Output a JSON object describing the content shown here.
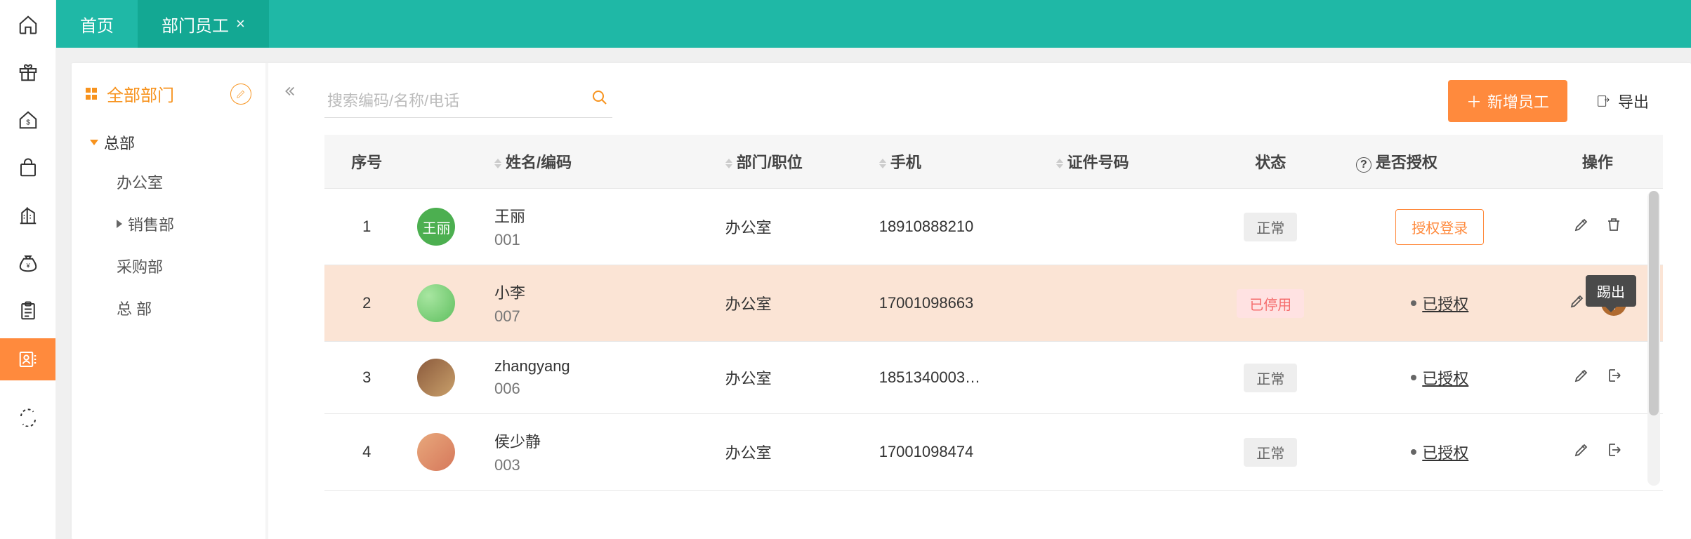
{
  "tabs": {
    "home": "首页",
    "dept": "部门员工"
  },
  "tree": {
    "title": "全部部门",
    "root": "总部",
    "children": [
      "办公室",
      "销售部",
      "采购部",
      "总 部"
    ]
  },
  "search": {
    "placeholder": "搜索编码/名称/电话"
  },
  "buttons": {
    "add": "新增员工",
    "export": "导出"
  },
  "columns": {
    "idx": "序号",
    "name": "姓名/编码",
    "dept": "部门/职位",
    "phone": "手机",
    "idno": "证件号码",
    "status": "状态",
    "auth": "是否授权",
    "ops": "操作"
  },
  "status_labels": {
    "normal": "正常",
    "stopped": "已停用"
  },
  "auth_labels": {
    "authorized": "已授权",
    "authorize_login": "授权登录"
  },
  "tooltip": "踢出",
  "rows": [
    {
      "idx": "1",
      "avatar_text": "王丽",
      "avatar_class": "text",
      "name": "王丽",
      "code": "001",
      "dept": "办公室",
      "phone": "18910888210",
      "idno": "",
      "status": "normal",
      "auth": "button"
    },
    {
      "idx": "2",
      "avatar_text": "",
      "avatar_class": "img1",
      "name": "小李",
      "code": "007",
      "dept": "办公室",
      "phone": "17001098663",
      "idno": "",
      "status": "stopped",
      "auth": "link"
    },
    {
      "idx": "3",
      "avatar_text": "",
      "avatar_class": "img2",
      "name": "zhangyang",
      "code": "006",
      "dept": "办公室",
      "phone": "1851340003…",
      "idno": "",
      "status": "normal",
      "auth": "link"
    },
    {
      "idx": "4",
      "avatar_text": "",
      "avatar_class": "img3",
      "name": "侯少静",
      "code": "003",
      "dept": "办公室",
      "phone": "17001098474",
      "idno": "",
      "status": "normal",
      "auth": "link"
    }
  ]
}
